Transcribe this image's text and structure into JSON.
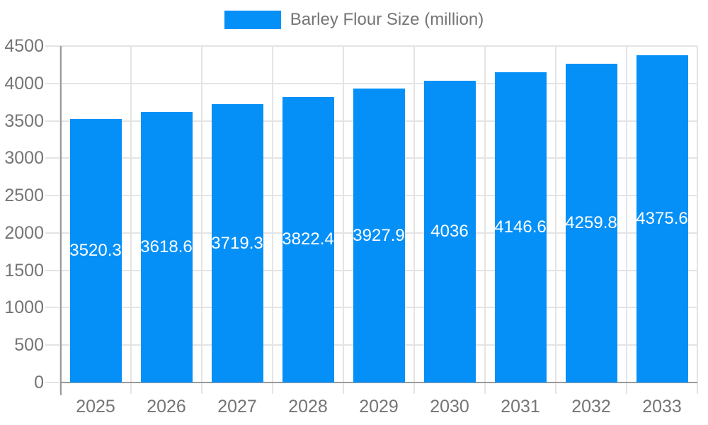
{
  "legend": {
    "label": "Barley Flour Size (million)"
  },
  "colors": {
    "bar": "#0590f8",
    "grid": "#e4e4e4",
    "axis": "#9a9a9a",
    "text": "#757575",
    "value_label": "#ffffff",
    "background": "#ffffff"
  },
  "chart_data": {
    "type": "bar",
    "title": "Barley Flour Size (million)",
    "categories": [
      "2025",
      "2026",
      "2027",
      "2028",
      "2029",
      "2030",
      "2031",
      "2032",
      "2033"
    ],
    "values": [
      3520.3,
      3618.6,
      3719.3,
      3822.4,
      3927.9,
      4036,
      4146.6,
      4259.8,
      4375.6
    ],
    "series": [
      {
        "name": "Barley Flour Size (million)",
        "values": [
          3520.3,
          3618.6,
          3719.3,
          3822.4,
          3927.9,
          4036,
          4146.6,
          4259.8,
          4375.6
        ]
      }
    ],
    "xlabel": "",
    "ylabel": "",
    "ylim": [
      0,
      4500
    ],
    "ytick_step": 500,
    "ytick_labels": [
      "0",
      "500",
      "1000",
      "1500",
      "2000",
      "2500",
      "3000",
      "3500",
      "4000",
      "4500"
    ],
    "grid": true,
    "legend_position": "top",
    "value_labels": "inside-center"
  }
}
